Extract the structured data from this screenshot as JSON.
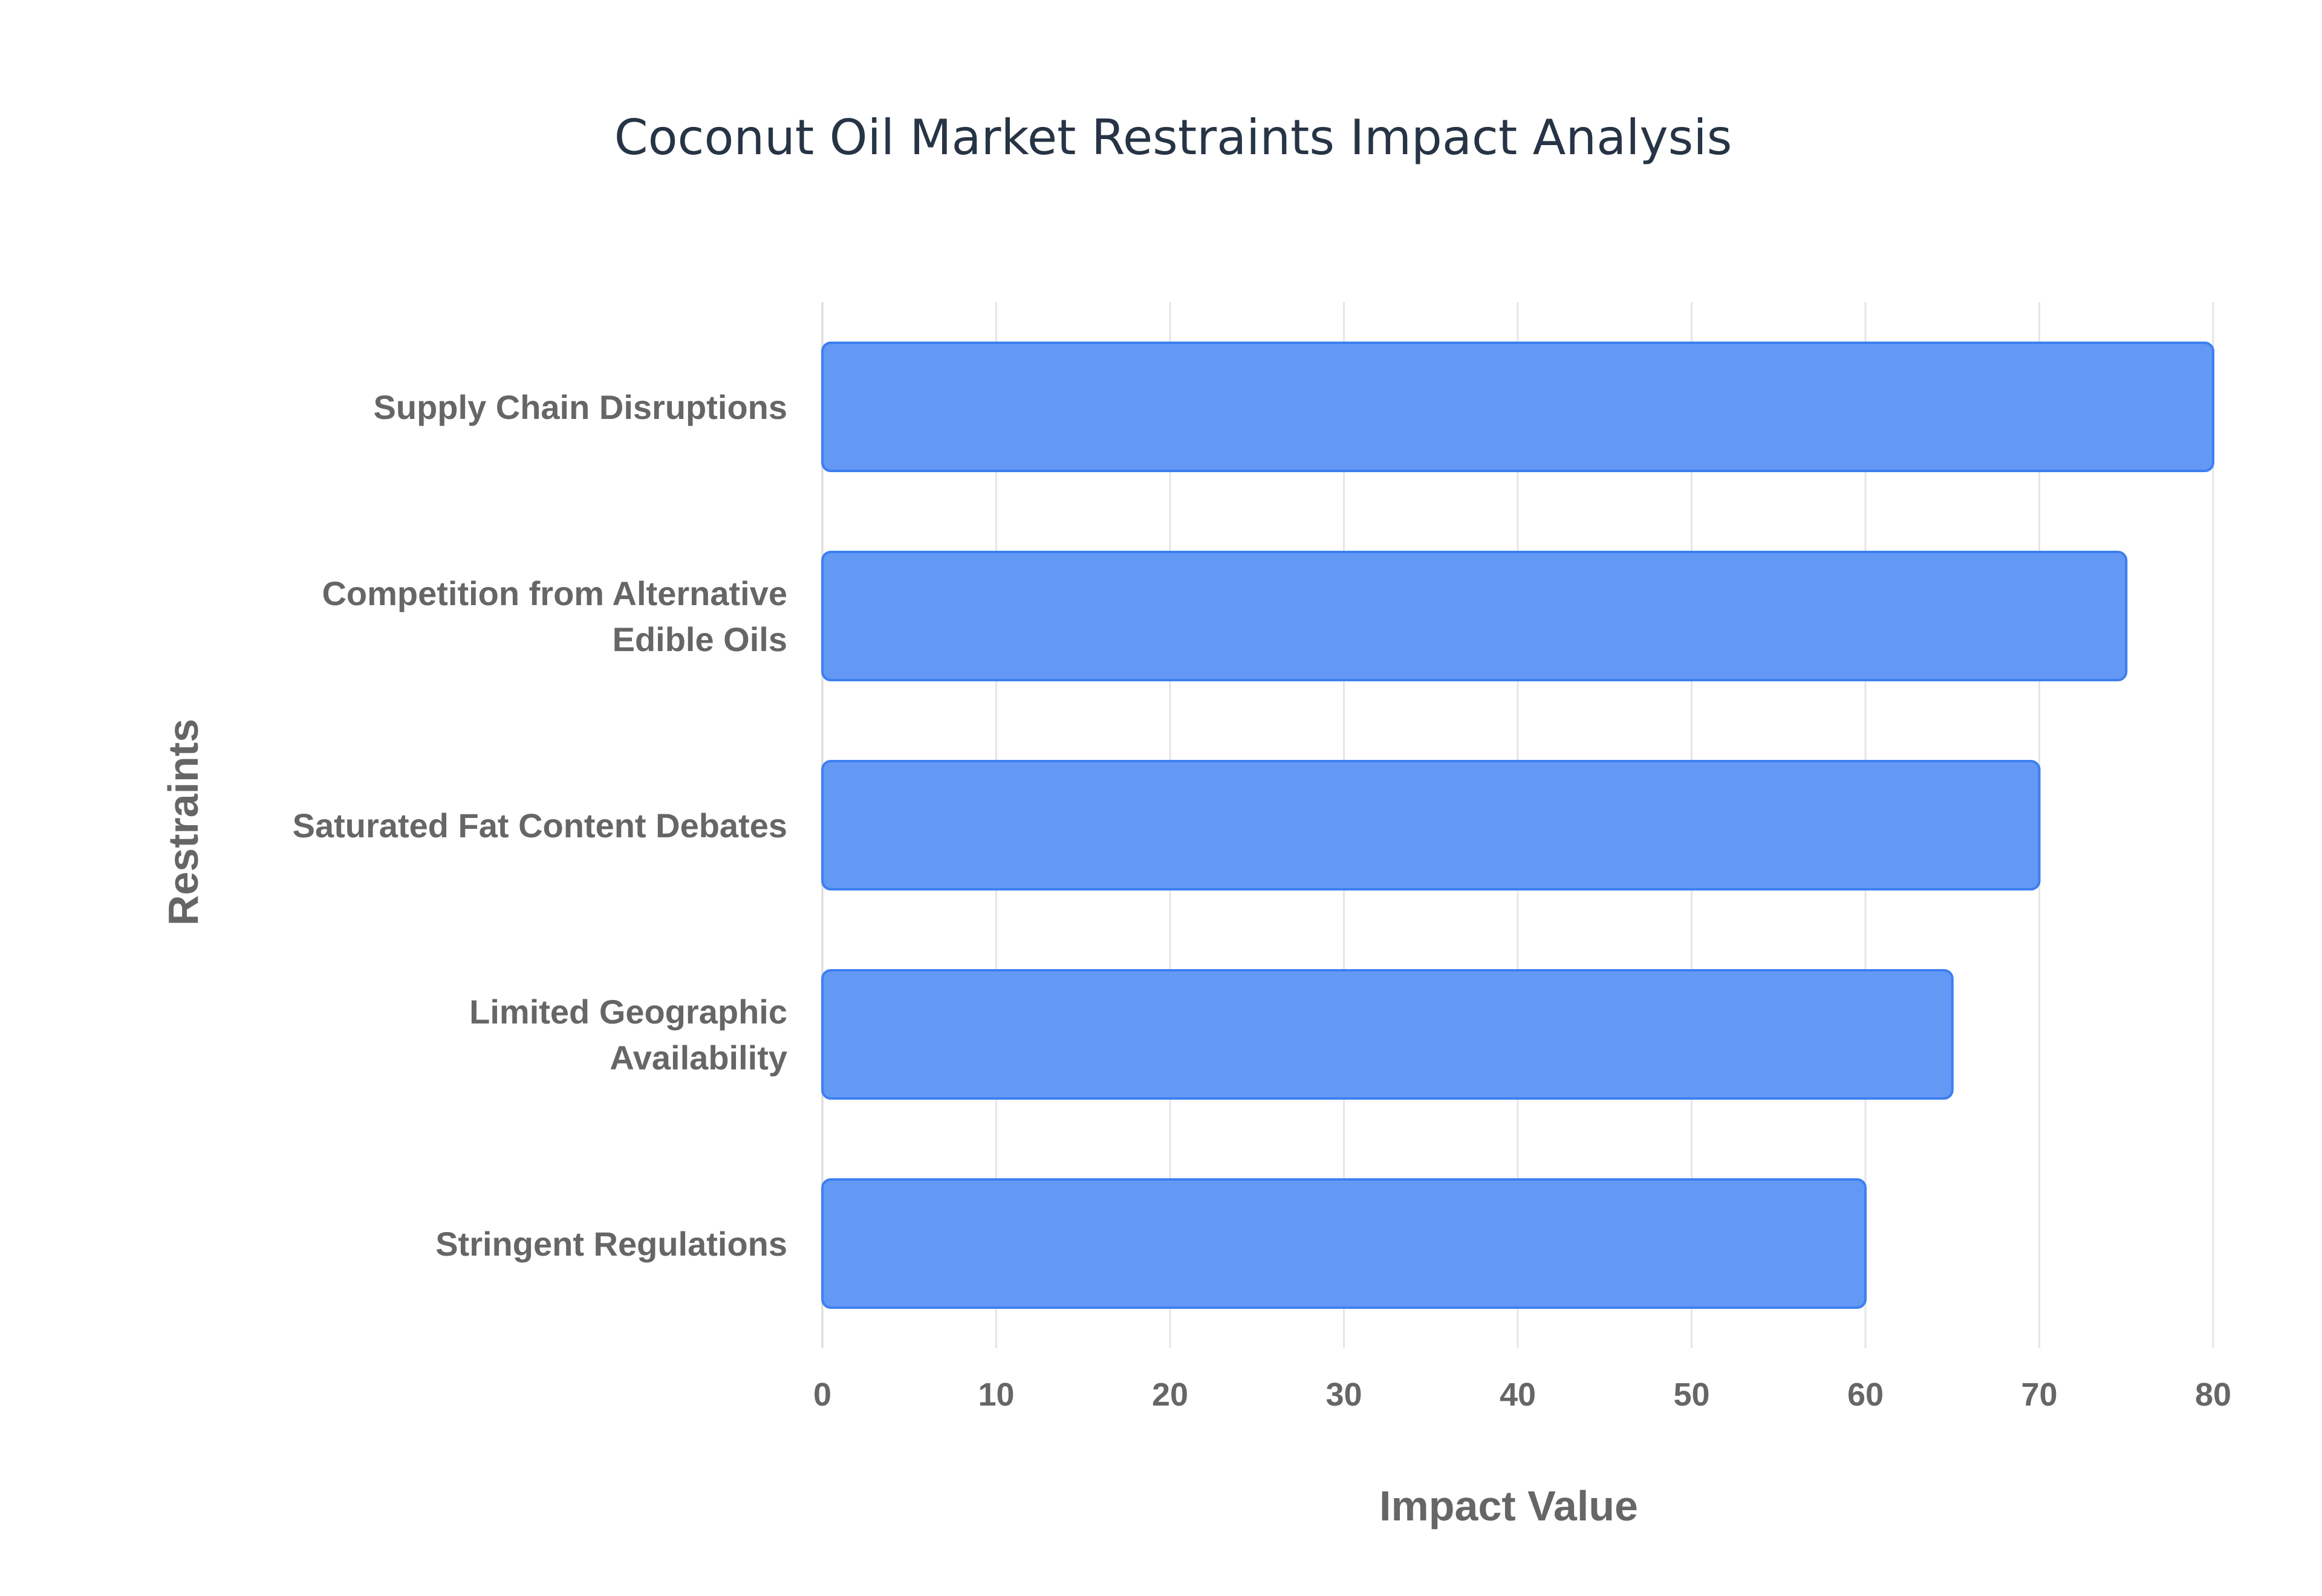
{
  "chart_data": {
    "type": "bar",
    "orientation": "horizontal",
    "title": "Coconut Oil Market Restraints Impact Analysis",
    "xlabel": "Impact Value",
    "ylabel": "Restraints",
    "categories": [
      "Supply Chain Disruptions",
      "Competition from Alternative Edible Oils",
      "Saturated Fat Content Debates",
      "Limited Geographic Availability",
      "Stringent Regulations"
    ],
    "category_label_lines": [
      [
        "Supply Chain Disruptions"
      ],
      [
        "Competition from Alternative",
        "Edible Oils"
      ],
      [
        "Saturated Fat Content Debates"
      ],
      [
        "Limited Geographic",
        "Availability"
      ],
      [
        "Stringent Regulations"
      ]
    ],
    "values": [
      80,
      75,
      70,
      65,
      60
    ],
    "xlim": [
      0,
      80
    ],
    "xticks": [
      0,
      10,
      20,
      30,
      40,
      50,
      60,
      70,
      80
    ],
    "grid": true,
    "legend": "none",
    "colors": {
      "bar_fill": "#6399f5",
      "bar_stroke": "#3d7ff0",
      "title": "#263445",
      "text": "#666666",
      "grid": "#e5e5e5"
    }
  }
}
